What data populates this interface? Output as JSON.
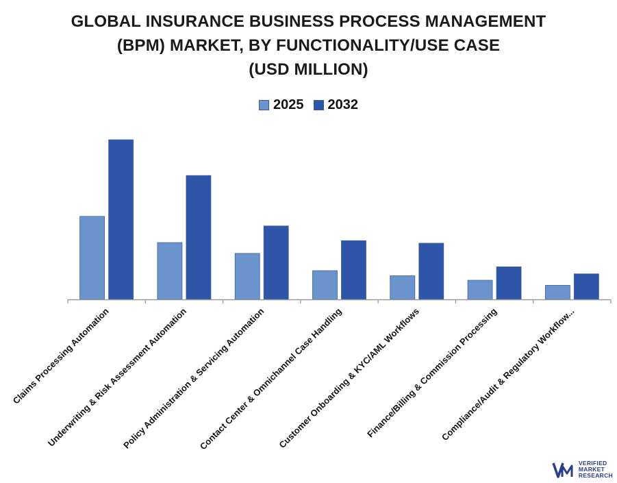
{
  "title_lines": [
    "GLOBAL INSURANCE BUSINESS PROCESS MANAGEMENT",
    "(BPM) MARKET, BY FUNCTIONALITY/USE CASE",
    "(USD MILLION)"
  ],
  "colors": {
    "series_2025": "#6b93cc",
    "series_2032": "#2f55a8",
    "axis": "#9a9a9a"
  },
  "logo": {
    "line1": "VERIFIED",
    "line2": "MARKET",
    "line3": "RESEARCH"
  },
  "chart_data": {
    "type": "bar",
    "title": "GLOBAL INSURANCE BUSINESS PROCESS MANAGEMENT (BPM) MARKET, BY FUNCTIONALITY/USE CASE (USD MILLION)",
    "xlabel": "",
    "ylabel": "",
    "ylim": [
      0,
      250
    ],
    "grid": false,
    "legend_position": "top-center",
    "categories": [
      "Claims Processing Automation",
      "Underwriting & Risk Assessment Automation",
      "Policy Administration & Servicing Automation",
      "Contact Center & Omnichannel Case Handling",
      "Customer Onboarding & KYC/AML Workflows",
      "Finance/Billing & Commission Processing",
      "Compliance/Audit & Regulatory Workflow..."
    ],
    "series": [
      {
        "name": "2025",
        "values": [
          130,
          89,
          72,
          45,
          37,
          30,
          22
        ]
      },
      {
        "name": "2032",
        "values": [
          250,
          194,
          115,
          92,
          88,
          51,
          40
        ]
      }
    ]
  }
}
